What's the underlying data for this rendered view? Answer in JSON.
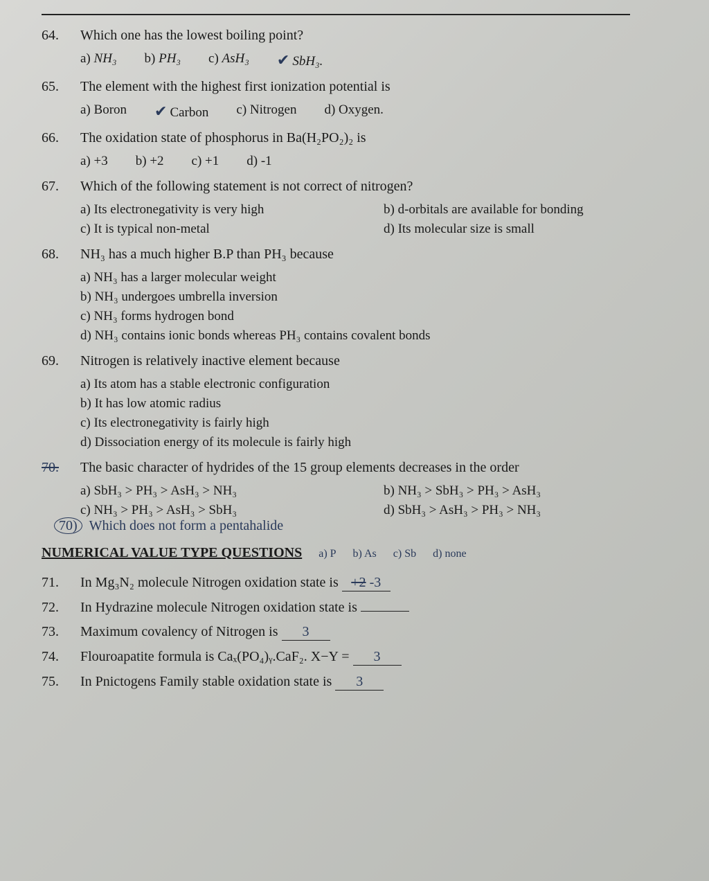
{
  "questions": [
    {
      "num": "64.",
      "stem": "Which one has the lowest boiling point?",
      "opts": [
        {
          "label": "a)",
          "text": "NH₃"
        },
        {
          "label": "b)",
          "text": "PH₃"
        },
        {
          "label": "c)",
          "text": "AsH₃"
        },
        {
          "label": "d)",
          "text": "SbH₃.",
          "tick": true
        }
      ],
      "layout": "row"
    },
    {
      "num": "65.",
      "stem": "The element with the highest first ionization potential is",
      "opts": [
        {
          "label": "a)",
          "text": "Boron"
        },
        {
          "label": "b)",
          "text": "Carbon",
          "tick": true
        },
        {
          "label": "c)",
          "text": "Nitrogen"
        },
        {
          "label": "d)",
          "text": "Oxygen."
        }
      ],
      "layout": "row"
    },
    {
      "num": "66.",
      "stem": "The oxidation state of phosphorus in Ba(H₂PO₂)₂ is",
      "opts": [
        {
          "label": "a)",
          "text": "+3"
        },
        {
          "label": "b)",
          "text": "+2"
        },
        {
          "label": "c)",
          "text": "+1"
        },
        {
          "label": "d)",
          "text": "-1"
        }
      ],
      "layout": "row"
    },
    {
      "num": "67.",
      "stem": "Which of the following statement is not correct of nitrogen?",
      "opts": [
        {
          "label": "a)",
          "text": "Its electronegativity is very high"
        },
        {
          "label": "b)",
          "text": "d-orbitals are available for bonding"
        },
        {
          "label": "c)",
          "text": "It is typical non-metal"
        },
        {
          "label": "d)",
          "text": "Its molecular size is small"
        }
      ],
      "layout": "two"
    },
    {
      "num": "68.",
      "stem": "NH₃ has a much higher B.P than PH₃ because",
      "opts": [
        {
          "label": "a)",
          "text": "NH₃ has a larger molecular weight"
        },
        {
          "label": "b)",
          "text": "NH₃ undergoes umbrella inversion"
        },
        {
          "label": "c)",
          "text": "NH₃ forms hydrogen bond"
        },
        {
          "label": "d)",
          "text": "NH₃ contains ionic bonds whereas PH₃ contains covalent bonds"
        }
      ],
      "layout": "col"
    },
    {
      "num": "69.",
      "stem": "Nitrogen is relatively inactive element because",
      "opts": [
        {
          "label": "a)",
          "text": "Its atom has a stable electronic configuration"
        },
        {
          "label": "b)",
          "text": "It has low atomic radius"
        },
        {
          "label": "c)",
          "text": "Its electronegativity is fairly high"
        },
        {
          "label": "d)",
          "text": "Dissociation energy of its molecule is fairly high"
        }
      ],
      "layout": "col"
    },
    {
      "num": "70.",
      "stem": "The basic character of hydrides of the 15 group elements decreases in the order",
      "num_strike": true,
      "opts": [
        {
          "label": "a)",
          "text": "SbH₃ > PH₃ > AsH₃ > NH₃"
        },
        {
          "label": "b)",
          "text": "NH₃ > SbH₃ > PH₃ > AsH₃"
        },
        {
          "label": "c)",
          "text": "NH₃ > PH₃ > AsH₃ > SbH₃"
        },
        {
          "label": "d)",
          "text": "SbH₃ > AsH₃ > PH₃ > NH₃"
        }
      ],
      "layout": "two"
    }
  ],
  "handwritten_q": {
    "num": "70)",
    "stem": "Which does not form a pentahalide",
    "opts": [
      "a) P",
      "b) As",
      "c) Sb",
      "d) none"
    ]
  },
  "section_heading": "NUMERICAL VALUE TYPE QUESTIONS",
  "num_questions": [
    {
      "num": "71.",
      "text_a": "In Mg₃N₂ molecule Nitrogen oxidation state is ",
      "answer": "+2  -3",
      "ans_strike_part": "+2"
    },
    {
      "num": "72.",
      "text_a": "In Hydrazine molecule Nitrogen oxidation state is ",
      "answer": ""
    },
    {
      "num": "73.",
      "text_a": "Maximum covalency of Nitrogen is",
      "answer": "3"
    },
    {
      "num": "74.",
      "text_a": "Flouroapatite formula is Caₓ(PO₄)ᵧ.CaF₂. X−Y = ",
      "answer": "3"
    },
    {
      "num": "75.",
      "text_a": "In Pnictogens Family stable oxidation state is",
      "answer": "3"
    }
  ]
}
